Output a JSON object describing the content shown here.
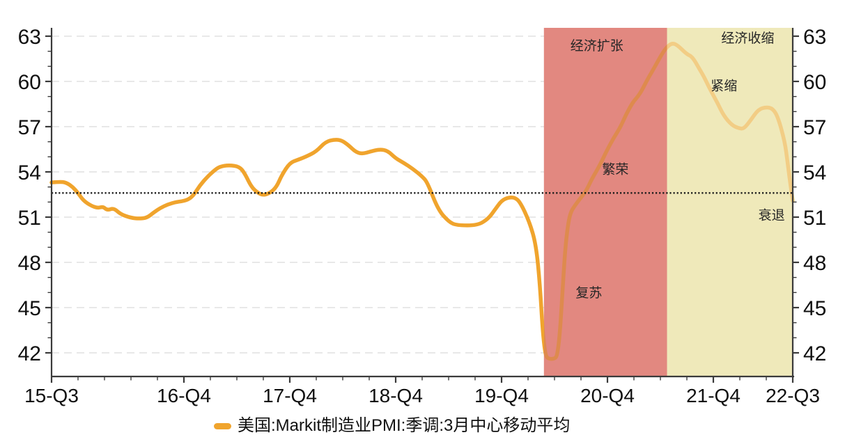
{
  "chart_data": {
    "type": "line",
    "title": "",
    "grid": {
      "horizontal": true,
      "vertical": false,
      "style": "dashed",
      "color": "#D9D9D9"
    },
    "y_axis": {
      "major_ticks": [
        42,
        45,
        48,
        51,
        54,
        57,
        60,
        63
      ],
      "minor_tick_step": 1,
      "range": [
        40.4,
        63.6
      ],
      "sides": "both"
    },
    "x_axis": {
      "tick_labels": [
        "15-Q3",
        "16-Q4",
        "17-Q4",
        "18-Q4",
        "19-Q4",
        "20-Q4",
        "21-Q4",
        "22-Q3"
      ],
      "tick_quarter_index": [
        0,
        5,
        9,
        13,
        17,
        21,
        25,
        28
      ],
      "range_quarters": [
        0,
        28
      ],
      "minor_tick_every_quarters": 1
    },
    "reference_line": {
      "value": 52.6,
      "style": "dotted",
      "color": "#1A1A1A"
    },
    "bands": [
      {
        "name": "expansion-band",
        "label": "经济扩张",
        "from_q": 18.6,
        "to_q": 23.25,
        "fill": "#E28880",
        "line_tint": "#DE8A4E"
      },
      {
        "name": "contraction-band",
        "label": "经济收缩",
        "from_q": 23.25,
        "to_q": 28,
        "fill": "#EFE9BA",
        "line_tint": "#F2CD85"
      }
    ],
    "annotations": [
      {
        "text": "经济扩张",
        "q": 20.6,
        "v": 62.4
      },
      {
        "text": "经济收缩",
        "q": 26.3,
        "v": 62.9
      },
      {
        "text": "繁荣",
        "q": 21.3,
        "v": 54.2
      },
      {
        "text": "复苏",
        "q": 20.3,
        "v": 46.0
      },
      {
        "text": "紧缩",
        "q": 25.4,
        "v": 59.75
      },
      {
        "text": "衰退",
        "q": 27.2,
        "v": 51.15
      }
    ],
    "series": [
      {
        "name": "美国:Markit制造业PMI:季调:3月中心移动平均",
        "color": "#F0A42D",
        "quarterly": {
          "labels": [
            "15-Q3",
            "15-Q4",
            "16-Q1",
            "16-Q2",
            "16-Q3",
            "16-Q4",
            "17-Q1",
            "17-Q2",
            "17-Q3",
            "17-Q4",
            "18-Q1",
            "18-Q2",
            "18-Q3",
            "18-Q4",
            "19-Q1",
            "19-Q2",
            "19-Q3",
            "19-Q4",
            "20-Q1",
            "20-Q2",
            "20-Q3",
            "20-Q4",
            "21-Q1",
            "21-Q2",
            "21-Q3",
            "21-Q4",
            "22-Q1",
            "22-Q2",
            "22-Q3"
          ],
          "values": [
            53.3,
            52.6,
            51.7,
            50.9,
            51.6,
            52.1,
            54.1,
            54.4,
            52.6,
            54.6,
            55.3,
            56.1,
            55.4,
            54.9,
            53.7,
            50.7,
            50.5,
            52.1,
            50.7,
            41.6,
            52.3,
            55.5,
            58.7,
            61.7,
            61.8,
            59.4,
            56.9,
            58.3,
            52.1
          ]
        },
        "points": [
          [
            0,
            53.3
          ],
          [
            0.3,
            53.35
          ],
          [
            0.55,
            53.3
          ],
          [
            0.8,
            53.0
          ],
          [
            1.0,
            52.6
          ],
          [
            1.2,
            52.1
          ],
          [
            1.5,
            51.75
          ],
          [
            1.75,
            51.6
          ],
          [
            1.95,
            51.7
          ],
          [
            2.1,
            51.45
          ],
          [
            2.35,
            51.6
          ],
          [
            2.6,
            51.2
          ],
          [
            3.0,
            50.95
          ],
          [
            3.3,
            50.9
          ],
          [
            3.6,
            50.95
          ],
          [
            3.85,
            51.3
          ],
          [
            4.1,
            51.6
          ],
          [
            4.4,
            51.85
          ],
          [
            4.7,
            52.0
          ],
          [
            5.1,
            52.1
          ],
          [
            5.35,
            52.4
          ],
          [
            5.6,
            53.1
          ],
          [
            5.9,
            53.7
          ],
          [
            6.15,
            54.1
          ],
          [
            6.35,
            54.35
          ],
          [
            6.7,
            54.45
          ],
          [
            7.1,
            54.35
          ],
          [
            7.3,
            53.9
          ],
          [
            7.55,
            53.0
          ],
          [
            7.8,
            52.6
          ],
          [
            8.0,
            52.45
          ],
          [
            8.25,
            52.6
          ],
          [
            8.5,
            53.0
          ],
          [
            8.7,
            53.8
          ],
          [
            9.0,
            54.6
          ],
          [
            9.3,
            54.8
          ],
          [
            9.6,
            55.0
          ],
          [
            10.0,
            55.35
          ],
          [
            10.35,
            56.0
          ],
          [
            10.7,
            56.15
          ],
          [
            10.95,
            56.1
          ],
          [
            11.2,
            55.8
          ],
          [
            11.5,
            55.3
          ],
          [
            11.75,
            55.2
          ],
          [
            12.05,
            55.35
          ],
          [
            12.4,
            55.5
          ],
          [
            12.7,
            55.4
          ],
          [
            13.0,
            54.9
          ],
          [
            13.3,
            54.6
          ],
          [
            13.65,
            54.2
          ],
          [
            14.0,
            53.7
          ],
          [
            14.2,
            53.3
          ],
          [
            14.6,
            51.5
          ],
          [
            15.0,
            50.7
          ],
          [
            15.3,
            50.45
          ],
          [
            16.1,
            50.45
          ],
          [
            16.5,
            50.9
          ],
          [
            16.75,
            51.5
          ],
          [
            17.0,
            52.1
          ],
          [
            17.25,
            52.3
          ],
          [
            17.5,
            52.3
          ],
          [
            17.7,
            52.0
          ],
          [
            18.05,
            50.7
          ],
          [
            18.3,
            49.2
          ],
          [
            18.45,
            46.5
          ],
          [
            18.55,
            43.5
          ],
          [
            18.65,
            41.9
          ],
          [
            18.75,
            41.6
          ],
          [
            19.0,
            41.6
          ],
          [
            19.1,
            41.8
          ],
          [
            19.2,
            43.2
          ],
          [
            19.3,
            46.0
          ],
          [
            19.4,
            48.8
          ],
          [
            19.5,
            50.4
          ],
          [
            19.6,
            51.3
          ],
          [
            19.78,
            51.8
          ],
          [
            20.0,
            52.3
          ],
          [
            20.2,
            52.75
          ],
          [
            20.4,
            53.5
          ],
          [
            20.7,
            54.4
          ],
          [
            21.0,
            55.5
          ],
          [
            21.25,
            56.3
          ],
          [
            21.5,
            57.0
          ],
          [
            21.7,
            57.8
          ],
          [
            21.95,
            58.6
          ],
          [
            22.15,
            59.0
          ],
          [
            22.3,
            59.4
          ],
          [
            22.5,
            60.1
          ],
          [
            22.8,
            61.0
          ],
          [
            23.05,
            61.8
          ],
          [
            23.25,
            62.3
          ],
          [
            23.45,
            62.55
          ],
          [
            23.65,
            62.4
          ],
          [
            24.0,
            61.8
          ],
          [
            24.2,
            61.65
          ],
          [
            24.45,
            60.9
          ],
          [
            24.65,
            60.3
          ],
          [
            24.9,
            59.4
          ],
          [
            25.15,
            58.6
          ],
          [
            25.4,
            57.7
          ],
          [
            25.7,
            57.1
          ],
          [
            25.95,
            56.9
          ],
          [
            26.15,
            56.85
          ],
          [
            26.4,
            57.4
          ],
          [
            26.7,
            58.15
          ],
          [
            27.0,
            58.3
          ],
          [
            27.25,
            58.2
          ],
          [
            27.45,
            57.6
          ],
          [
            27.7,
            56.0
          ],
          [
            27.8,
            54.7
          ],
          [
            27.9,
            53.3
          ],
          [
            28.0,
            52.1
          ]
        ]
      }
    ],
    "legend": {
      "position": "bottom-center",
      "items": [
        {
          "label": "美国:Markit制造业PMI:季调:3月中心移动平均",
          "swatch_color": "#F0A42D"
        }
      ]
    }
  }
}
